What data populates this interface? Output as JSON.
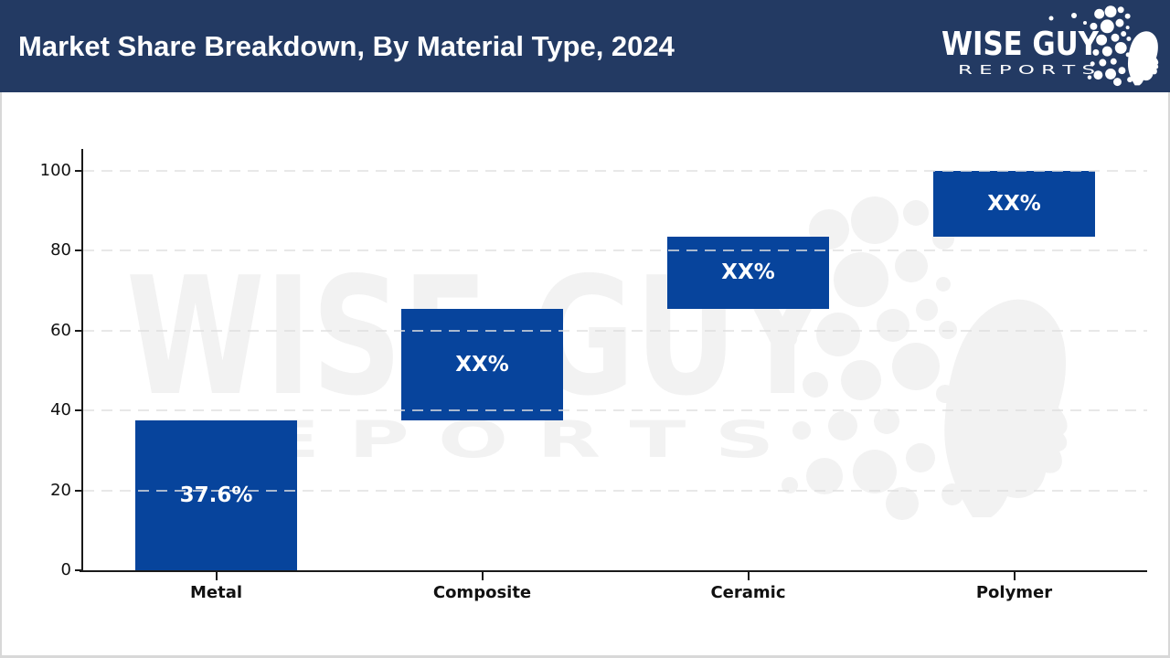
{
  "header": {
    "title": "Market Share Breakdown, By Material Type, 2024",
    "logo": {
      "line1": "WISE GUY",
      "line2": "R E P O R T S"
    }
  },
  "watermark": {
    "line1": "WISE GUY",
    "line2": "R E P O R T S"
  },
  "colors": {
    "header_bg": "#233a63",
    "bar_blue": "#07449c",
    "grid_gray": "#e0e0e0",
    "axis_black": "#1a1a1a",
    "bar_label_white": "#ffffff",
    "watermark_gray": "#f2f2f2",
    "border_gray": "#d8d8d8"
  },
  "chart_data": {
    "type": "bar",
    "subtype": "stacked-waterfall",
    "title": "Market Share Breakdown, By Material Type, 2024",
    "categories": [
      "Metal",
      "Composite",
      "Ceramic",
      "Polymer"
    ],
    "segments": [
      {
        "category": "Metal",
        "start": 0,
        "end": 37.6,
        "label": "37.6%"
      },
      {
        "category": "Composite",
        "start": 37.6,
        "end": 65.5,
        "label": "XX%"
      },
      {
        "category": "Ceramic",
        "start": 65.5,
        "end": 83.5,
        "label": "XX%"
      },
      {
        "category": "Polymer",
        "start": 83.5,
        "end": 100,
        "label": "XX%"
      }
    ],
    "y_ticks": [
      0,
      20,
      40,
      60,
      80,
      100
    ],
    "ylim": [
      0,
      100
    ],
    "xlabel": "",
    "ylabel": "",
    "grid": "horizontal-dashed",
    "legend": "none"
  }
}
